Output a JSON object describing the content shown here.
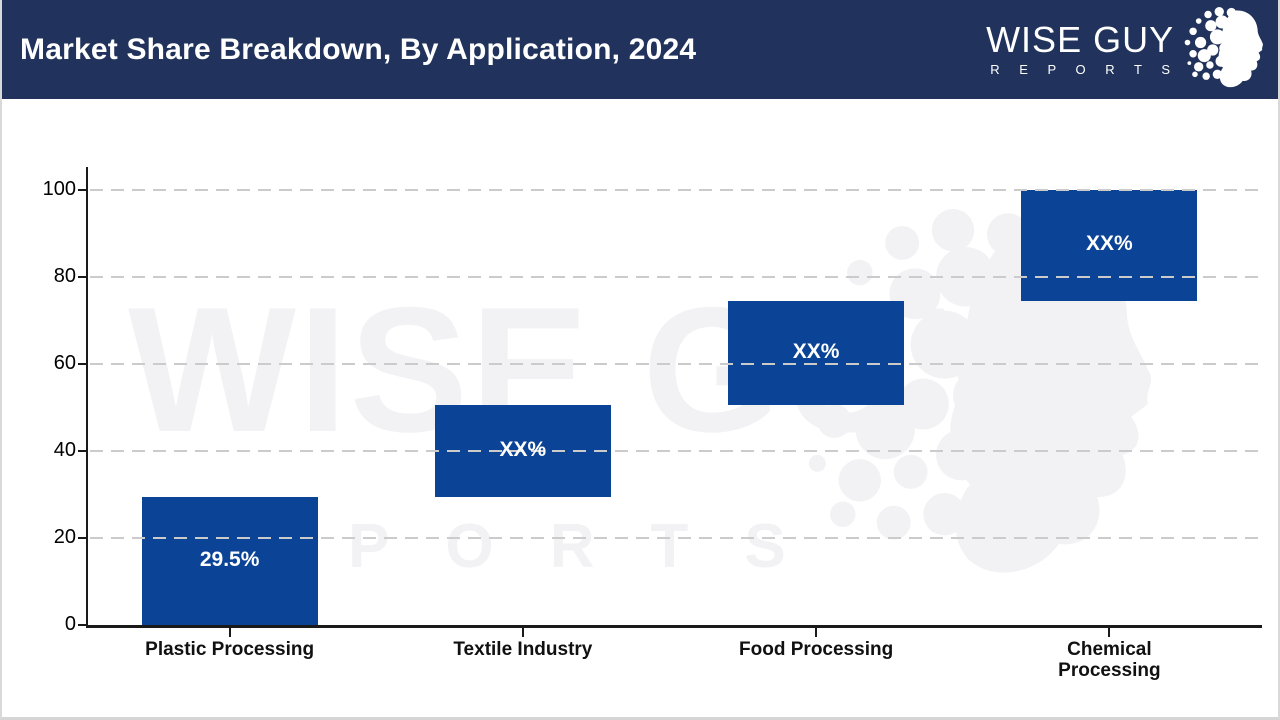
{
  "header": {
    "title": "Market Share Breakdown, By Application, 2024",
    "brand": {
      "name": "WISE GUY",
      "sub": "R E P O R T S"
    },
    "bg_color": "#21335c"
  },
  "watermark": {
    "line1": "WISE GUY",
    "line2": "REPORTS"
  },
  "chart_data": {
    "type": "bar",
    "subtype": "waterfall",
    "title": "Market Share Breakdown, By Application, 2024",
    "categories": [
      "Plastic Processing",
      "Textile Industry",
      "Food Processing",
      "Chemical Processing"
    ],
    "category_label_lines": [
      [
        "Plastic Processing"
      ],
      [
        "Textile Industry"
      ],
      [
        "Food Processing"
      ],
      [
        "Chemical",
        "Processing"
      ]
    ],
    "segments": [
      {
        "category": "Plastic Processing",
        "start": 0,
        "end": 29.5,
        "label": "29.5%"
      },
      {
        "category": "Textile Industry",
        "start": 29.5,
        "end": 50.5,
        "label": "XX%"
      },
      {
        "category": "Food Processing",
        "start": 50.5,
        "end": 74.5,
        "label": "XX%"
      },
      {
        "category": "Chemical Processing",
        "start": 74.5,
        "end": 100,
        "label": "XX%"
      }
    ],
    "y_ticks": [
      0,
      20,
      40,
      60,
      80,
      100
    ],
    "ylim": [
      0,
      105
    ],
    "grid": "horizontal-dashed",
    "legend": "none",
    "bar_color": "#0b4396",
    "bar_label_color": "#ffffff",
    "gridline_color": "#cbcbcb",
    "axis_color": "#1a1a1a"
  }
}
